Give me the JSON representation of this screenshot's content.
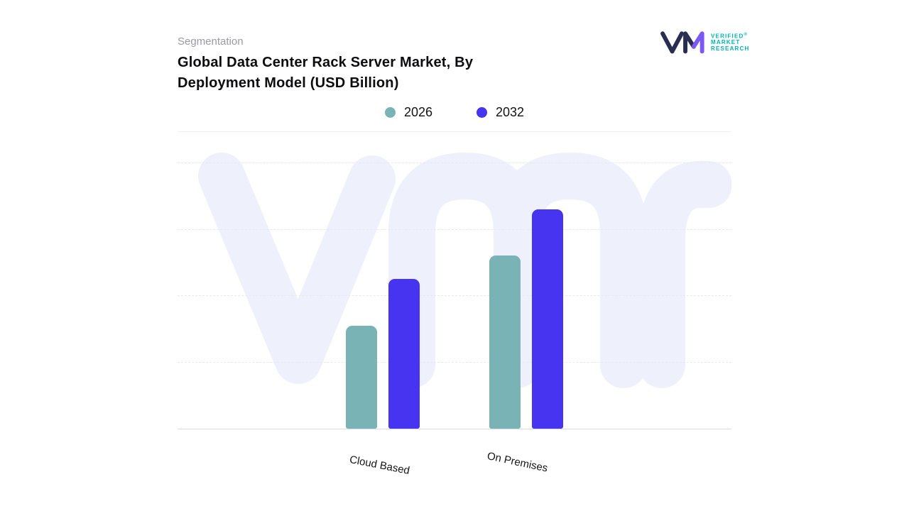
{
  "brand": {
    "name": "VMR",
    "logo_lines": [
      "VERIFIED",
      "MARKET",
      "RESEARCH"
    ],
    "registered_mark": "®",
    "logo_teal": "#00b2b3",
    "logo_navy": "#2a2d52",
    "logo_purple": "#7b57f5"
  },
  "header": {
    "eyebrow": "Segmentation",
    "title_line1": "Global Data Center Rack Server Market, By",
    "title_line2": "Deployment Model (USD Billion)"
  },
  "legend": [
    {
      "label": "2026",
      "color": "#79b3b6"
    },
    {
      "label": "2032",
      "color": "#4634f1"
    }
  ],
  "chart_data": {
    "type": "bar",
    "title": "Global Data Center Rack Server Market, By Deployment Model (USD Billion)",
    "categories": [
      "Cloud Based",
      "On Premises"
    ],
    "series": [
      {
        "name": "2026",
        "color": "#79b3b6",
        "values": [
          1.55,
          2.6
        ]
      },
      {
        "name": "2032",
        "color": "#4634f1",
        "values": [
          2.25,
          3.3
        ]
      }
    ],
    "ylim": [
      0,
      4
    ],
    "xlabel": "",
    "ylabel": "",
    "y_axis_tick_labels_visible": false,
    "values_note": "relative units estimated from gridlines; no numeric axis labels shown",
    "grid": "horizontal dashed",
    "legend_position": "top center"
  }
}
